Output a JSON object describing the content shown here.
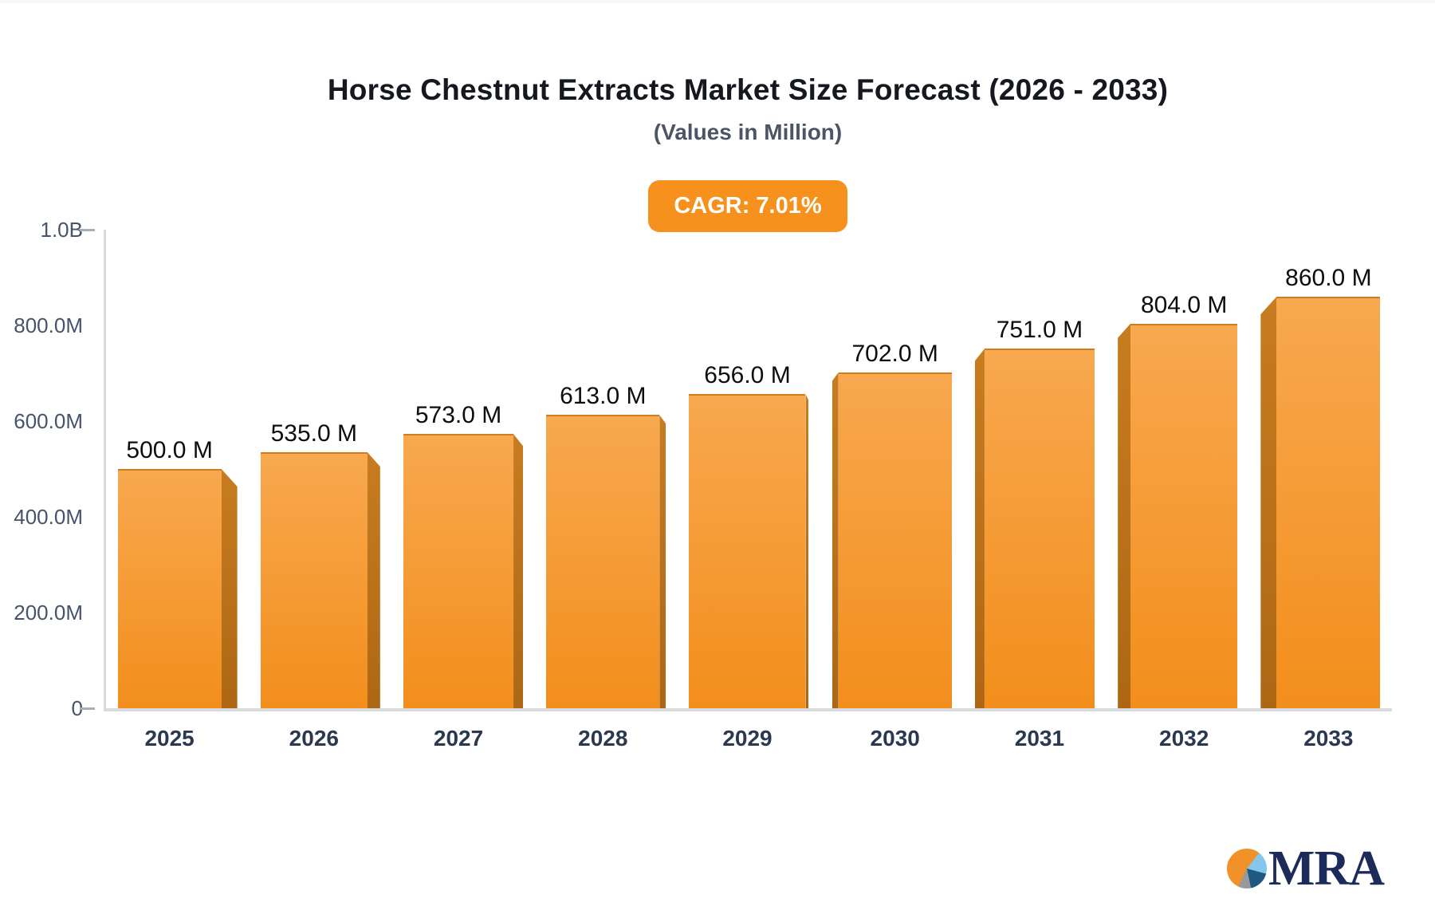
{
  "header": {
    "title": "Horse Chestnut Extracts Market Size Forecast (2026 - 2033)",
    "subtitle": "(Values in Million)",
    "cagr_badge": "CAGR: 7.01%"
  },
  "chart_data": {
    "type": "bar",
    "title": "Horse Chestnut Extracts Market Size Forecast (2026 - 2033)",
    "subtitle": "(Values in Million)",
    "annotation": "CAGR: 7.01%",
    "categories": [
      "2025",
      "2026",
      "2027",
      "2028",
      "2029",
      "2030",
      "2031",
      "2032",
      "2033"
    ],
    "values_millions": [
      500,
      535,
      573,
      613,
      656,
      702,
      751,
      804,
      860
    ],
    "value_labels": [
      "500.0 M",
      "535.0 M",
      "573.0 M",
      "613.0 M",
      "656.0 M",
      "702.0 M",
      "751.0 M",
      "804.0 M",
      "860.0 M"
    ],
    "xlabel": "",
    "ylabel": "",
    "ylim_millions": [
      0,
      1000
    ],
    "y_axis": {
      "max_value_millions": 1000,
      "ticks": [
        {
          "label": "1.0B",
          "value": 1000,
          "dash": true
        },
        {
          "label": "800.0M",
          "value": 800,
          "dash": false
        },
        {
          "label": "600.0M",
          "value": 600,
          "dash": false
        },
        {
          "label": "400.0M",
          "value": 400,
          "dash": false
        },
        {
          "label": "200.0M",
          "value": 200,
          "dash": false
        },
        {
          "label": "0",
          "value": 0,
          "dash": true
        }
      ]
    },
    "grid": "off",
    "legend": "none",
    "style_3d": true,
    "bar_colors": {
      "front_top": "#f8a84f",
      "front_bottom": "#f28e1c",
      "side": "#b06a16",
      "top_edge": "#d07d1d"
    }
  },
  "colors": {
    "badge_background": "#f6911e",
    "badge_text": "#ffffff",
    "title_text": "#15181e",
    "subtitle_text": "#4b5566",
    "axis_line": "#d8dadf",
    "tick_text": "#47536b",
    "year_text": "#2b3950",
    "value_text": "#0b0d10"
  },
  "logo": {
    "text": "MRA",
    "pie_colors": [
      "#f0912a",
      "#85c7ea",
      "#1f5880",
      "#97999c"
    ]
  }
}
